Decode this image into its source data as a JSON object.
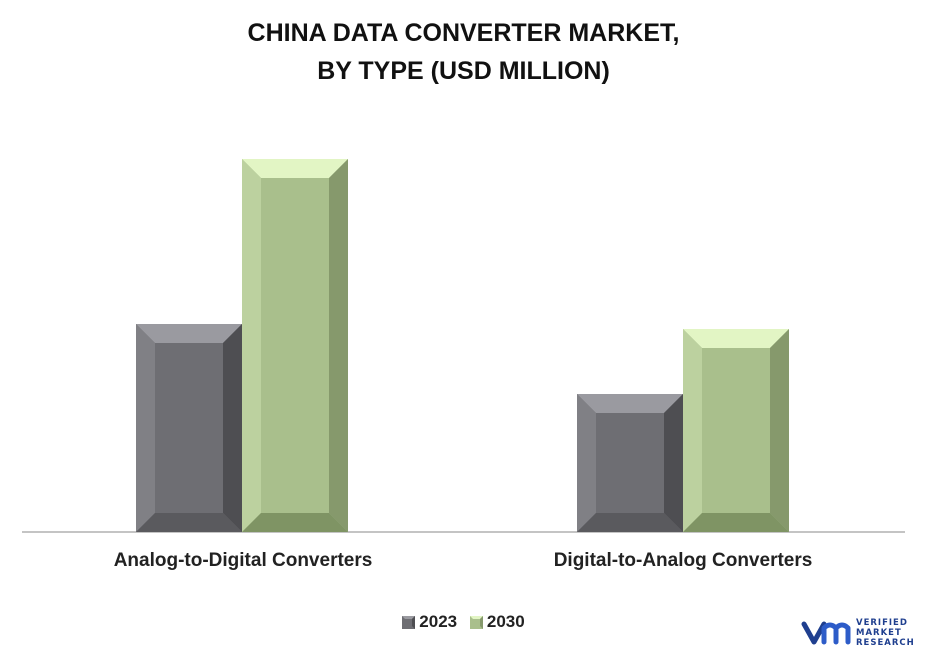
{
  "title_lines": [
    "CHINA DATA CONVERTER MARKET,",
    "BY TYPE (USD MILLION)"
  ],
  "chart_data": {
    "type": "bar",
    "title": "CHINA DATA CONVERTER MARKET, BY TYPE (USD MILLION)",
    "categories": [
      "Analog-to-Digital Converters",
      "Digital-to-Analog Converters"
    ],
    "series": [
      {
        "name": "2023",
        "values": [
          208,
          138
        ],
        "color": "#6e6e73"
      },
      {
        "name": "2030",
        "values": [
          373,
          203
        ],
        "color": "#a9bf8c"
      }
    ],
    "ylim": [
      0,
      400
    ],
    "grid": false,
    "legend": "bottom-center"
  },
  "logo": {
    "lines": [
      "VERIFIED",
      "MARKET",
      "RESEARCH"
    ],
    "color": "#1f3f8f"
  }
}
